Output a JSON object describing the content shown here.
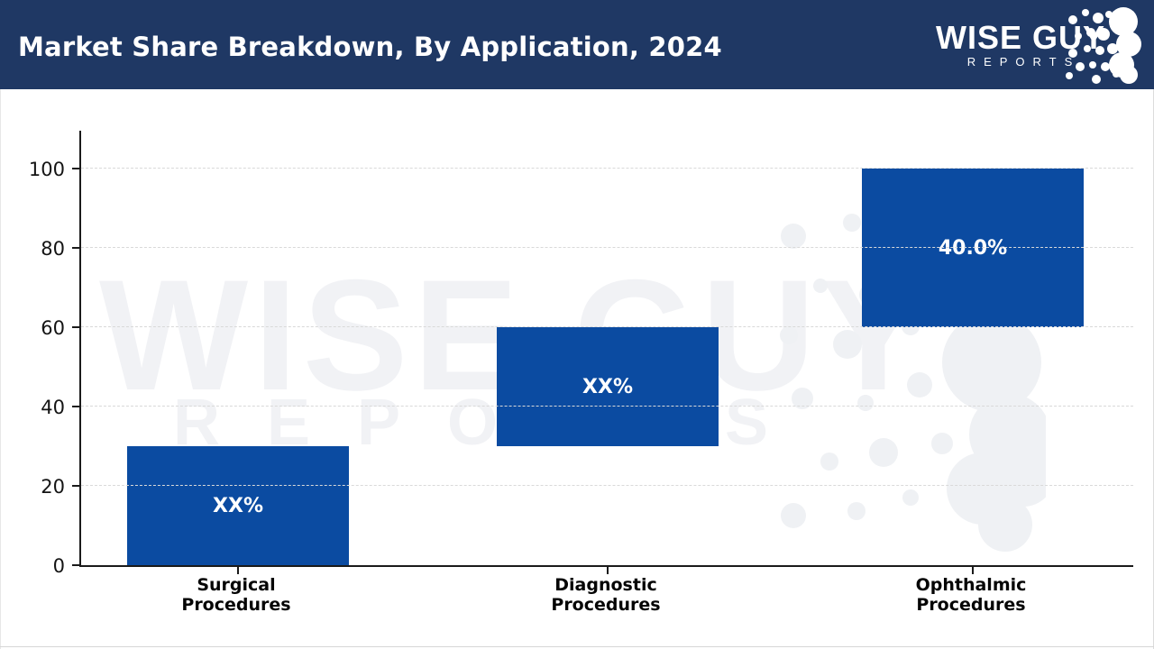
{
  "header": {
    "title": "Market Share Breakdown, By Application, 2024",
    "bg_color": "#1f3864",
    "logo": {
      "line1": "WISE GUY",
      "line2": "REPORTS"
    }
  },
  "watermark": {
    "line1": "WISE GUY",
    "line2": "REPORTS"
  },
  "chart_data": {
    "type": "bar",
    "variant": "floating-range bars (waterfall-style market share breakdown)",
    "title": "Market Share Breakdown, By Application, 2024",
    "categories": [
      "Surgical Procedures",
      "Diagnostic Procedures",
      "Ophthalmic Procedures"
    ],
    "bars": [
      {
        "category_line1": "Surgical",
        "category_line2": "Procedures",
        "start": 0,
        "end": 30,
        "label": "XX%"
      },
      {
        "category_line1": "Diagnostic",
        "category_line2": "Procedures",
        "start": 30,
        "end": 60,
        "label": "XX%"
      },
      {
        "category_line1": "Ophthalmic",
        "category_line2": "Procedures",
        "start": 60,
        "end": 100,
        "label": "40.0%"
      }
    ],
    "yticks": [
      "0",
      "20",
      "40",
      "60",
      "80",
      "100"
    ],
    "ylim": [
      0,
      109
    ],
    "xlabel": "",
    "ylabel": "",
    "bar_color": "#0b4ba1",
    "label_color": "#ffffff",
    "grid": {
      "axis": "y",
      "style": "dashed",
      "color": "#d9d9d9",
      "drawn_over_bars": true
    },
    "legend": null
  }
}
